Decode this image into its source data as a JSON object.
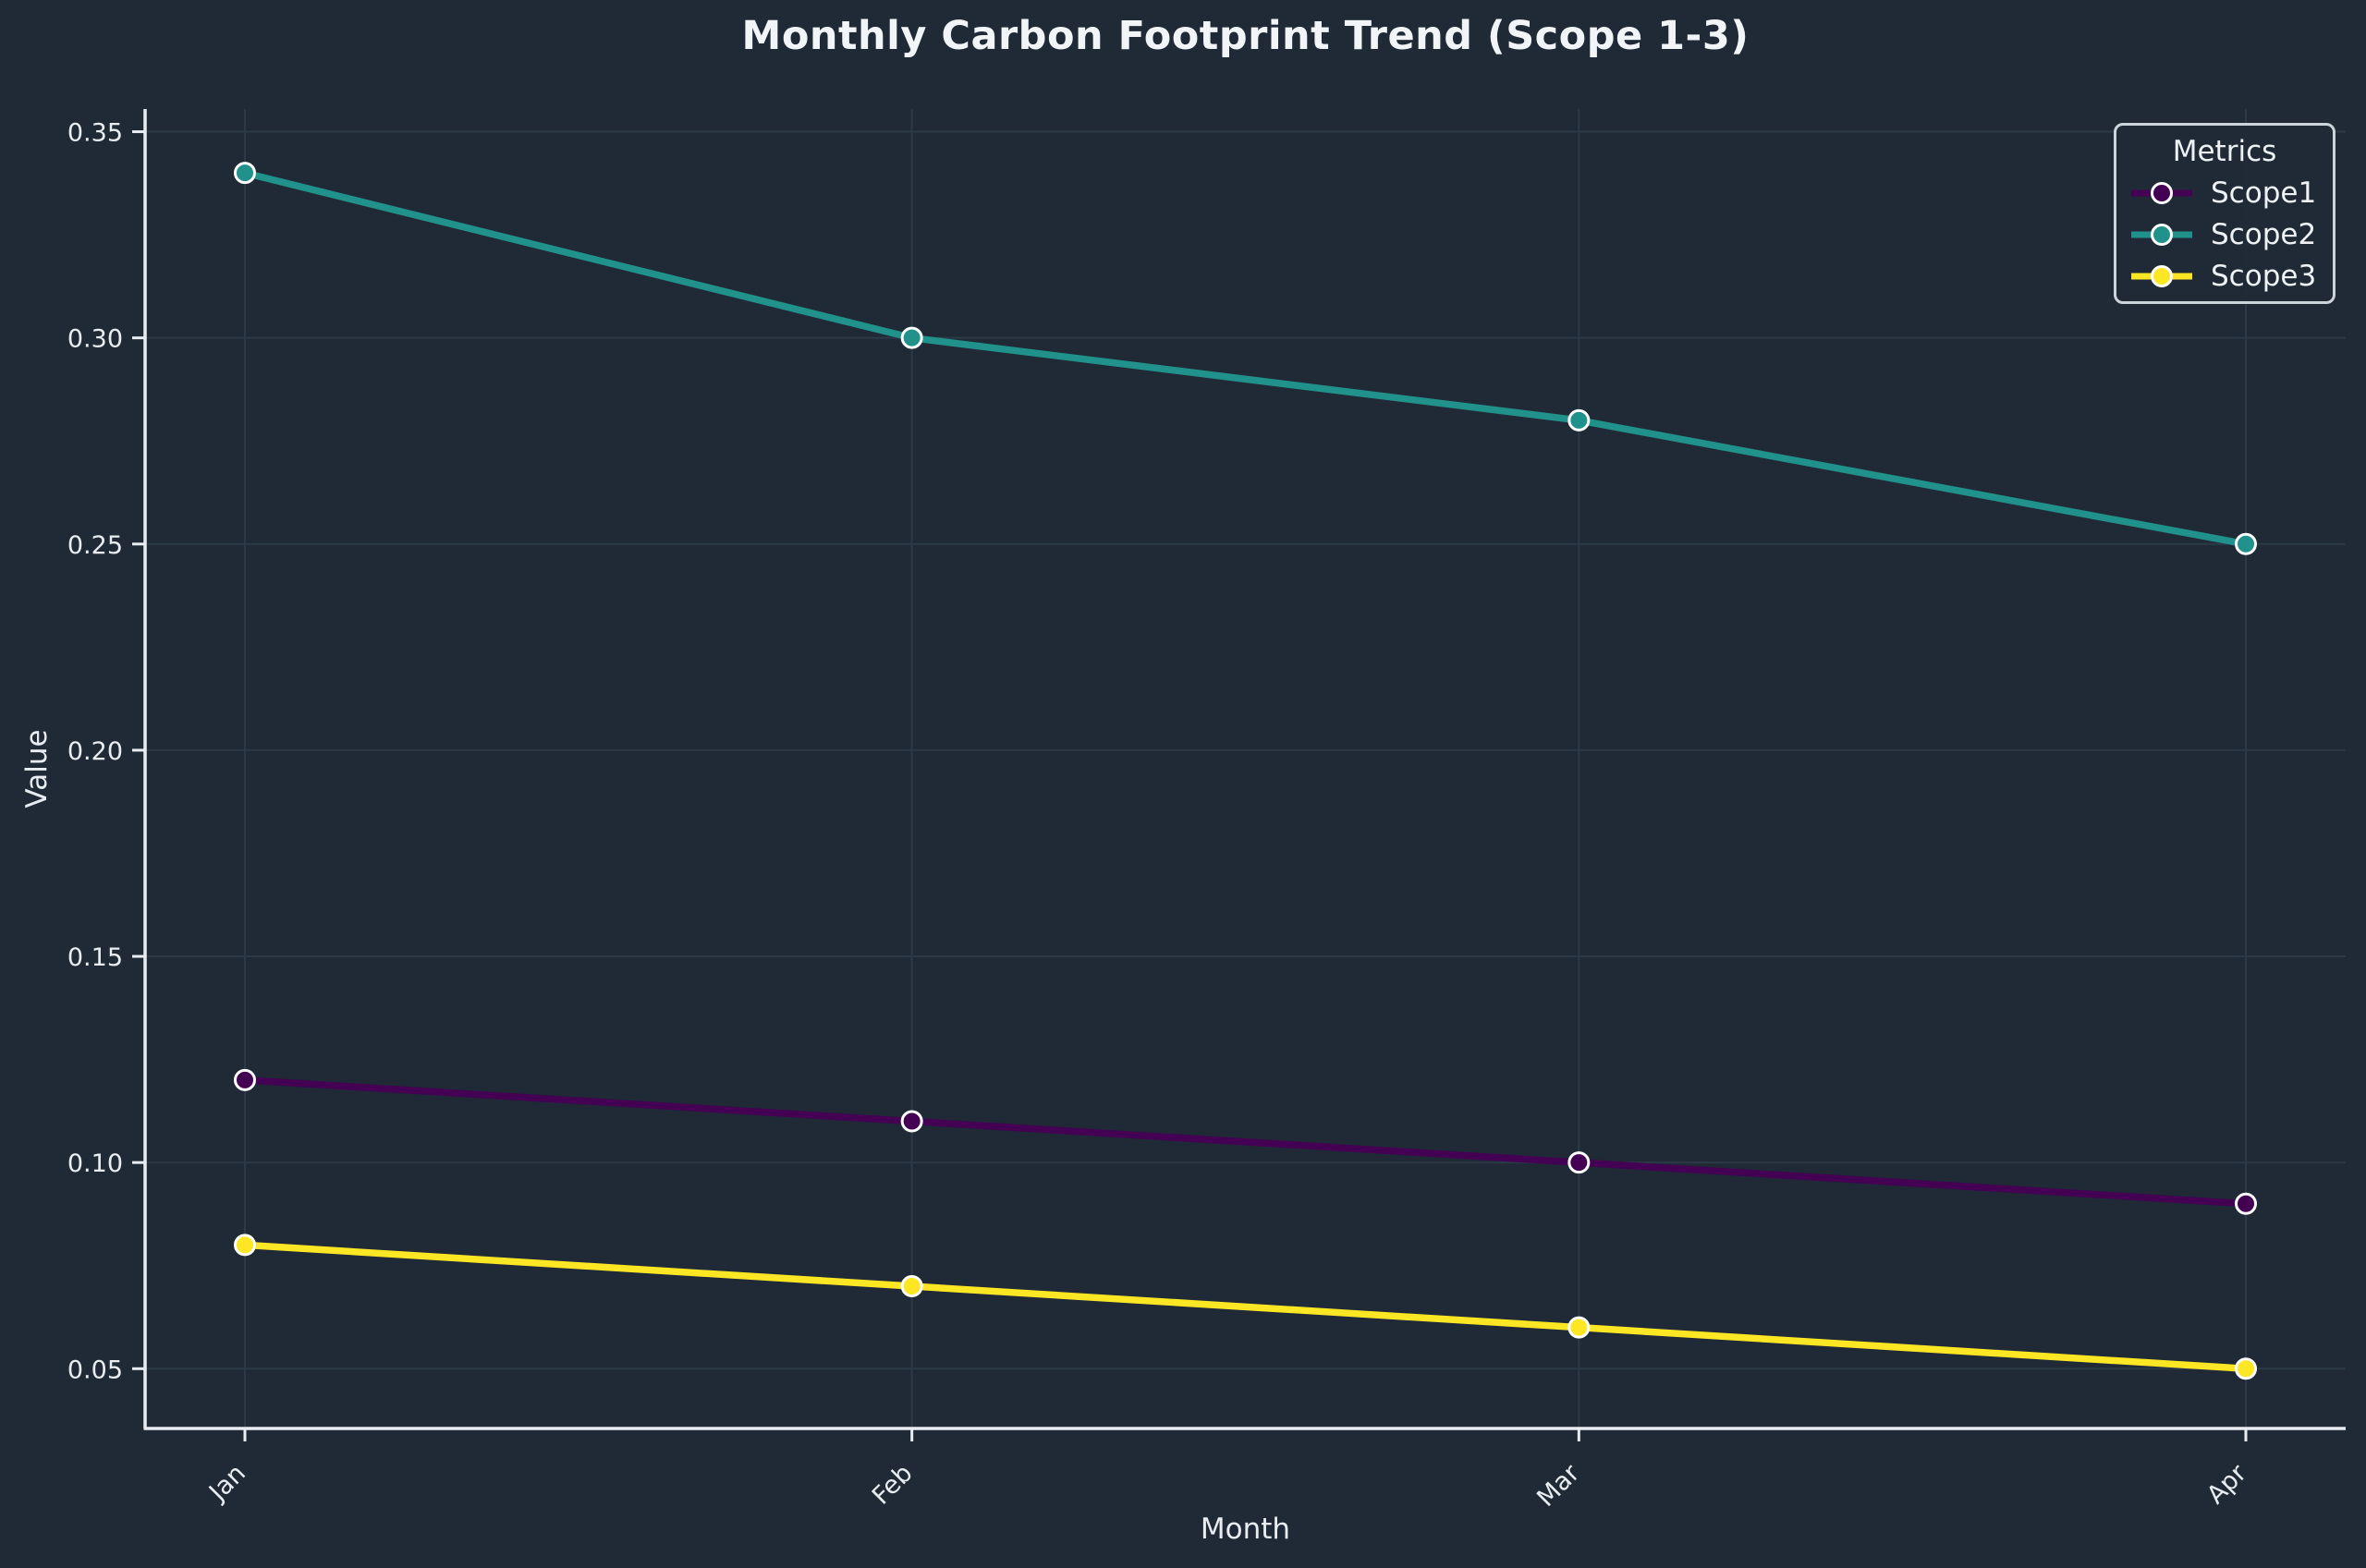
{
  "colors": {
    "background": "#1f2a36",
    "text": "#e9edf1",
    "title_text": "#f2f5f8",
    "spine": "#e9edf1",
    "grid": "#2c3947",
    "legend_border": "#ccd4db",
    "marker_edge": "#ffffff"
  },
  "chart_data": {
    "type": "line",
    "title": "Monthly Carbon Footprint Trend (Scope 1-3)",
    "xlabel": "Month",
    "ylabel": "Value",
    "categories": [
      "Jan",
      "Feb",
      "Mar",
      "Apr"
    ],
    "x_tick_rotation": 45,
    "series": [
      {
        "name": "Scope1",
        "values": [
          0.12,
          0.11,
          0.1,
          0.09
        ],
        "color": "#440154",
        "marker": "circle",
        "marker_edge": "#ffffff"
      },
      {
        "name": "Scope2",
        "values": [
          0.34,
          0.3,
          0.28,
          0.25
        ],
        "color": "#21918c",
        "marker": "circle",
        "marker_edge": "#ffffff"
      },
      {
        "name": "Scope3",
        "values": [
          0.08,
          0.07,
          0.06,
          0.05
        ],
        "color": "#fde725",
        "marker": "circle",
        "marker_edge": "#ffffff"
      }
    ],
    "y_ticks": [
      0.05,
      0.1,
      0.15,
      0.2,
      0.25,
      0.3,
      0.35
    ],
    "y_tick_labels": [
      "0.05",
      "0.10",
      "0.15",
      "0.20",
      "0.25",
      "0.30",
      "0.35"
    ],
    "ylim": [
      0.0355,
      0.3555
    ],
    "grid": true,
    "legend": {
      "title": "Metrics",
      "position": "upper-right",
      "entries": [
        "Scope1",
        "Scope2",
        "Scope3"
      ]
    }
  }
}
